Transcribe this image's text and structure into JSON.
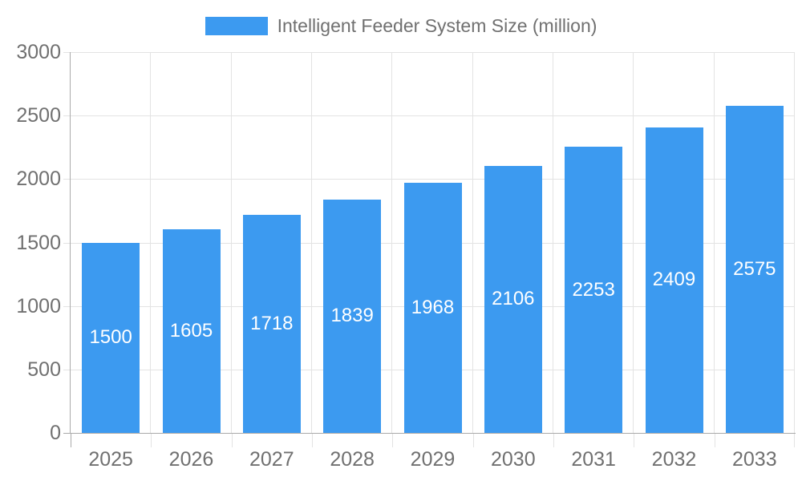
{
  "legend": {
    "label": "Intelligent Feeder System Size (million)"
  },
  "colors": {
    "bar": "#3c9af0",
    "grid": "#e3e3e3",
    "axis": "#aaaaaa",
    "tick_text": "#707070",
    "value_label_text": "#ffffff",
    "background": "#ffffff"
  },
  "chart_data": {
    "type": "bar",
    "title": "",
    "xlabel": "",
    "ylabel": "",
    "categories": [
      "2025",
      "2026",
      "2027",
      "2028",
      "2029",
      "2030",
      "2031",
      "2032",
      "2033"
    ],
    "values": [
      1500,
      1605,
      1718,
      1839,
      1968,
      2106,
      2253,
      2409,
      2575
    ],
    "series_name": "Intelligent Feeder System Size (million)",
    "ylim": [
      0,
      3000
    ],
    "yticks": [
      0,
      500,
      1000,
      1500,
      2000,
      2500,
      3000
    ],
    "grid": true,
    "legend_position": "top",
    "value_labels": "inside-center"
  }
}
